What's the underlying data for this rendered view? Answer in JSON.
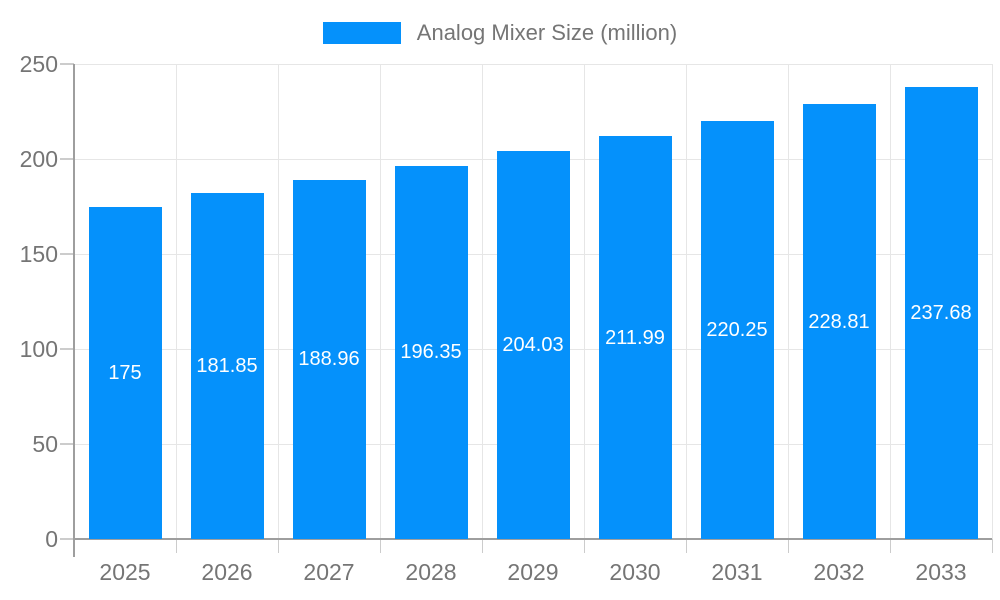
{
  "legend": {
    "label": "Analog Mixer Size (million)"
  },
  "colors": {
    "bar": "#0591fb",
    "bar_label": "#ffffff",
    "axis_text": "#757575",
    "grid": "#e6e6e6",
    "axis_line": "#9e9e9e",
    "tick": "#cccccc"
  },
  "chart_data": {
    "type": "bar",
    "title": "",
    "xlabel": "",
    "ylabel": "",
    "categories": [
      "2025",
      "2026",
      "2027",
      "2028",
      "2029",
      "2030",
      "2031",
      "2032",
      "2033"
    ],
    "series": [
      {
        "name": "Analog Mixer Size (million)",
        "values": [
          175,
          181.85,
          188.96,
          196.35,
          204.03,
          211.99,
          220.25,
          228.81,
          237.68
        ],
        "labels": [
          "175",
          "181.85",
          "188.96",
          "196.35",
          "204.03",
          "211.99",
          "220.25",
          "228.81",
          "237.68"
        ]
      }
    ],
    "ylim": [
      0,
      250
    ],
    "yticks": [
      0,
      50,
      100,
      150,
      200,
      250
    ],
    "grid": true,
    "legend_position": "top",
    "bar_label_position": "inside-center"
  }
}
